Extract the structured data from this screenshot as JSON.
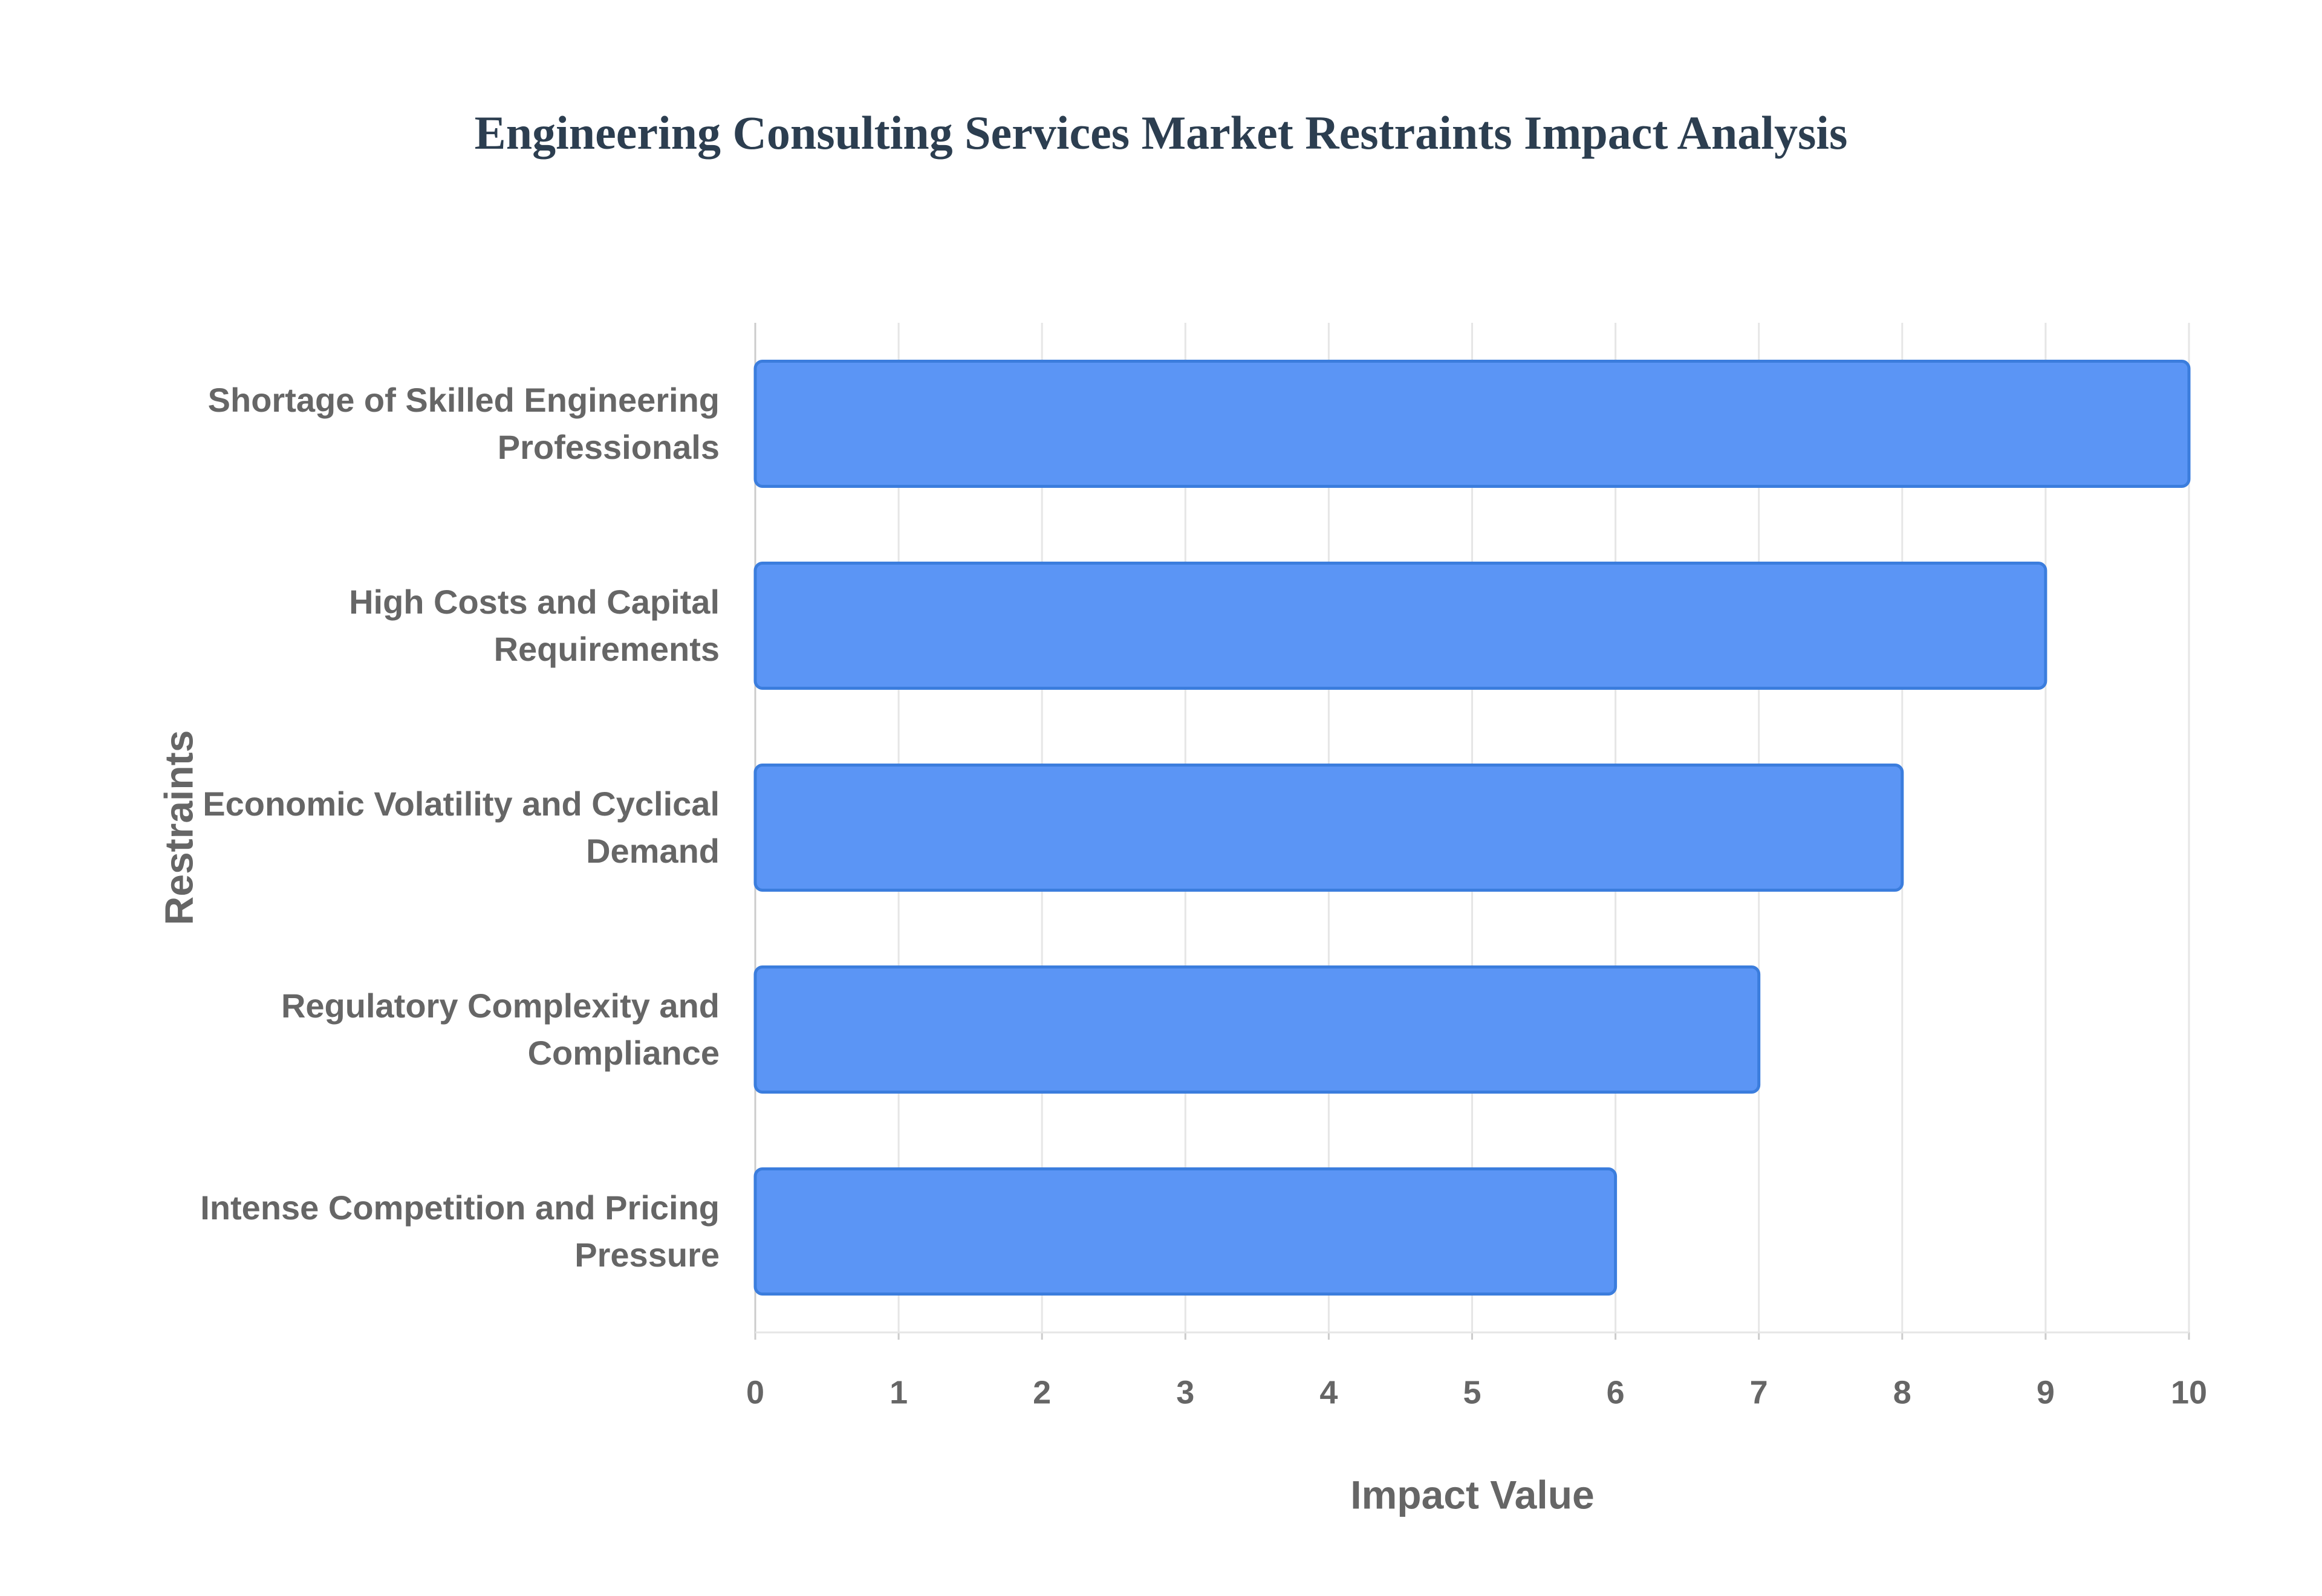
{
  "chart_data": {
    "type": "bar",
    "orientation": "horizontal",
    "title": "Engineering Consulting Services Market Restraints Impact Analysis",
    "x_label": "Impact Value",
    "y_label": "Restraints",
    "categories": [
      "Shortage of Skilled Engineering Professionals",
      "High Costs and Capital Requirements",
      "Economic Volatility and Cyclical Demand",
      "Regulatory Complexity and Compliance",
      "Intense Competition and Pricing Pressure"
    ],
    "values": [
      10,
      9,
      8,
      7,
      6
    ],
    "color": "#5b95f5",
    "xlim": [
      0,
      10
    ],
    "xticks": [
      0,
      1,
      2,
      3,
      4,
      5,
      6,
      7,
      8,
      9,
      10
    ],
    "grid": true
  }
}
